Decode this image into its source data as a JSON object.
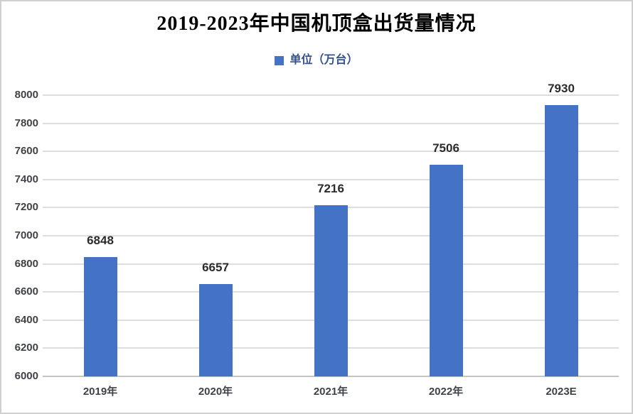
{
  "title": "2019-2023年中国机顶盒出货量情况",
  "legend": {
    "label": "单位（万台）",
    "swatch_color": "#4472C4"
  },
  "chart_data": {
    "type": "bar",
    "title": "2019-2023年中国机顶盒出货量情况",
    "categories": [
      "2019年",
      "2020年",
      "2021年",
      "2022年",
      "2023E"
    ],
    "values": [
      6848,
      6657,
      7216,
      7506,
      7930
    ],
    "series_name": "单位（万台）",
    "xlabel": "",
    "ylabel": "",
    "ylim": [
      6000,
      8000
    ],
    "ytick_step": 200,
    "ytick_labels": [
      "6000",
      "6200",
      "6400",
      "6600",
      "6800",
      "7000",
      "7200",
      "7400",
      "7600",
      "7800",
      "8000"
    ],
    "grid": true,
    "legend_position": "top",
    "bar_color": "#4472C4"
  },
  "colors": {
    "bar": "#4472C4",
    "gridline": "#dedede",
    "axis_line": "#c4c4c4",
    "tick_label": "#3f4347",
    "data_label": "#2b2b2b",
    "legend_text": "#34518c",
    "title_text": "#000000",
    "frame_border": "#cfcfcf",
    "background": "#ffffff"
  }
}
